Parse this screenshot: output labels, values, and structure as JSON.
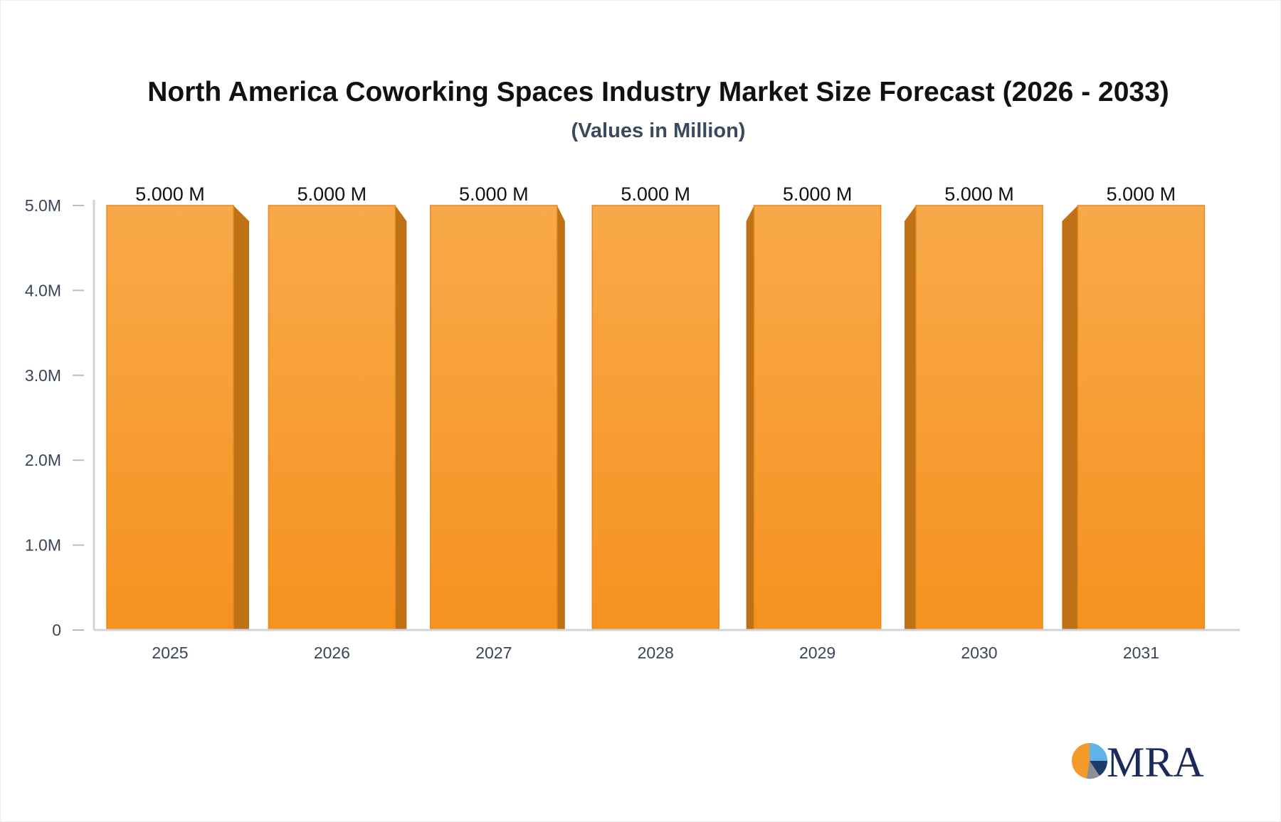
{
  "chart_data": {
    "type": "bar",
    "title": "North America Coworking Spaces Industry Market Size Forecast (2026 - 2033)",
    "subtitle": "(Values in Million)",
    "categories": [
      "2025",
      "2026",
      "2027",
      "2028",
      "2029",
      "2030",
      "2031"
    ],
    "values": [
      5.0,
      5.0,
      5.0,
      5.0,
      5.0,
      5.0,
      5.0
    ],
    "data_labels": [
      "5.000 M",
      "5.000 M",
      "5.000 M",
      "5.000 M",
      "5.000 M",
      "5.000 M",
      "5.000 M"
    ],
    "yticks": [
      0,
      1,
      2,
      3,
      4,
      5
    ],
    "ytick_labels": [
      "0",
      "1.0M",
      "2.0M",
      "3.0M",
      "4.0M",
      "5.0M"
    ],
    "ylim": [
      0,
      5
    ],
    "grid": false,
    "bar_color": "#f7a13e",
    "bar_side_color": "#bf7116"
  },
  "logo": {
    "text": "MRA"
  }
}
